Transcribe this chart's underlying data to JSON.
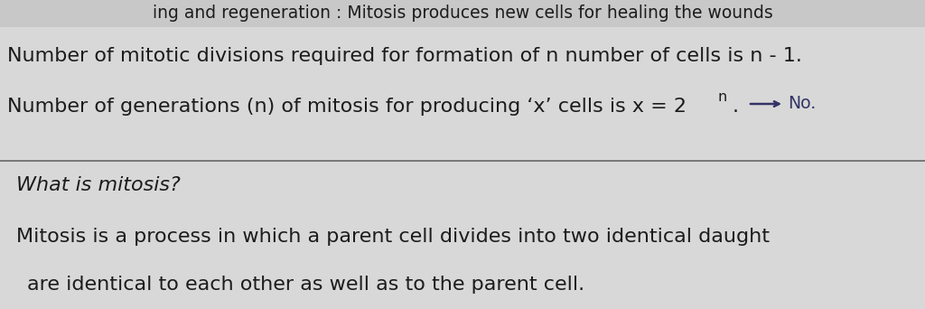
{
  "bg_header": "#c8c8c8",
  "bg_middle": "#d8d8d8",
  "bg_bottom": "#d8d8d8",
  "line1_text": "Number of mitotic divisions required for formation of n number of cells is n - 1.",
  "line2_prefix": "Number of generations (n) of mitosis for producing ‘x’ cells is x = 2",
  "line2_super": "n",
  "line2_suffix": ".",
  "line3_italic": "What is mitosis?",
  "line4_text": "Mitosis is a process in which a parent cell divides into two identical daught",
  "line5_text": "are identical to each other as well as to the parent cell.",
  "header_text": "ing and regeneration : Mitosis produces new cells for healing the wounds",
  "text_color": "#1c1c1c",
  "italic_color": "#1c1c1c",
  "arrow_color": "#333366",
  "divider_color": "#666666",
  "font_size_main": 16,
  "font_size_header": 13.5,
  "font_size_italic": 16,
  "figsize": [
    10.24,
    3.42
  ],
  "dpi": 100
}
